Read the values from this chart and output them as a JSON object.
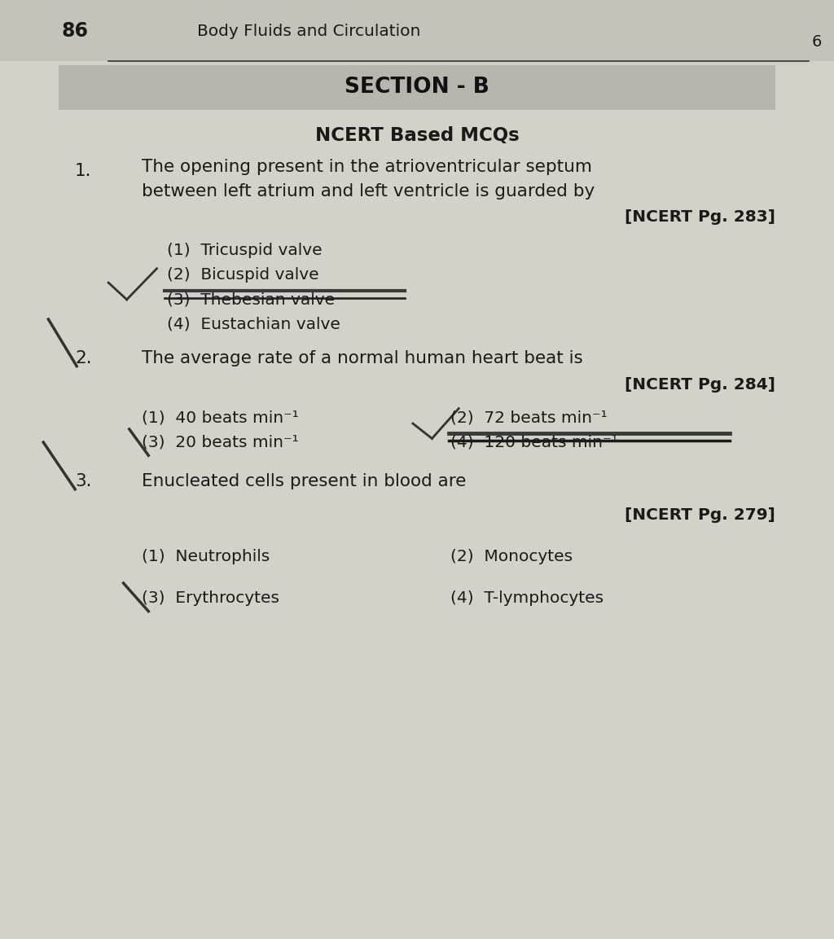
{
  "bg_color": "#d4d1c8",
  "page_bg": "#e6e3da",
  "header_num": "86",
  "header_title": "Body Fluids and Circulation",
  "corner_num": "6",
  "section_bg": "#b8b5ae",
  "section_text": "SECTION - B",
  "ncert_mcqs_title": "NCERT Based MCQs",
  "q1_num": "1.",
  "q1_text_line1": "The opening present in the atrioventricular septum",
  "q1_text_line2": "between left atrium and left ventricle is guarded by",
  "q1_ref": "[NCERT Pg. 283]",
  "q1_opts": [
    "(1)  Tricuspid valve",
    "(2)  Bicuspid valve",
    "(3)  Thebesian valve",
    "(4)  Eustachian valve"
  ],
  "q2_num": "2.",
  "q2_text": "The average rate of a normal human heart beat is",
  "q2_ref": "[NCERT Pg. 284]",
  "q2_opt1": "(1)  40 beats min⁻¹",
  "q2_opt2": "(2)  72 beats min⁻¹",
  "q2_opt3": "(3)  20 beats min⁻¹",
  "q2_opt4": "(4)  120 beats min⁻¹",
  "q3_num": "3.",
  "q3_text": "Enucleated cells present in blood are",
  "q3_ref": "[NCERT Pg. 279]",
  "q3_opt1": "(1)  Neutrophils",
  "q3_opt2": "(2)  Monocytes",
  "q3_opt3": "(3)  Erythrocytes",
  "q3_opt4": "(4)  T-lymphocytes",
  "text_color": "#1a1a1a",
  "underline_color": "#3a3a3a",
  "mark_color": "#333333"
}
